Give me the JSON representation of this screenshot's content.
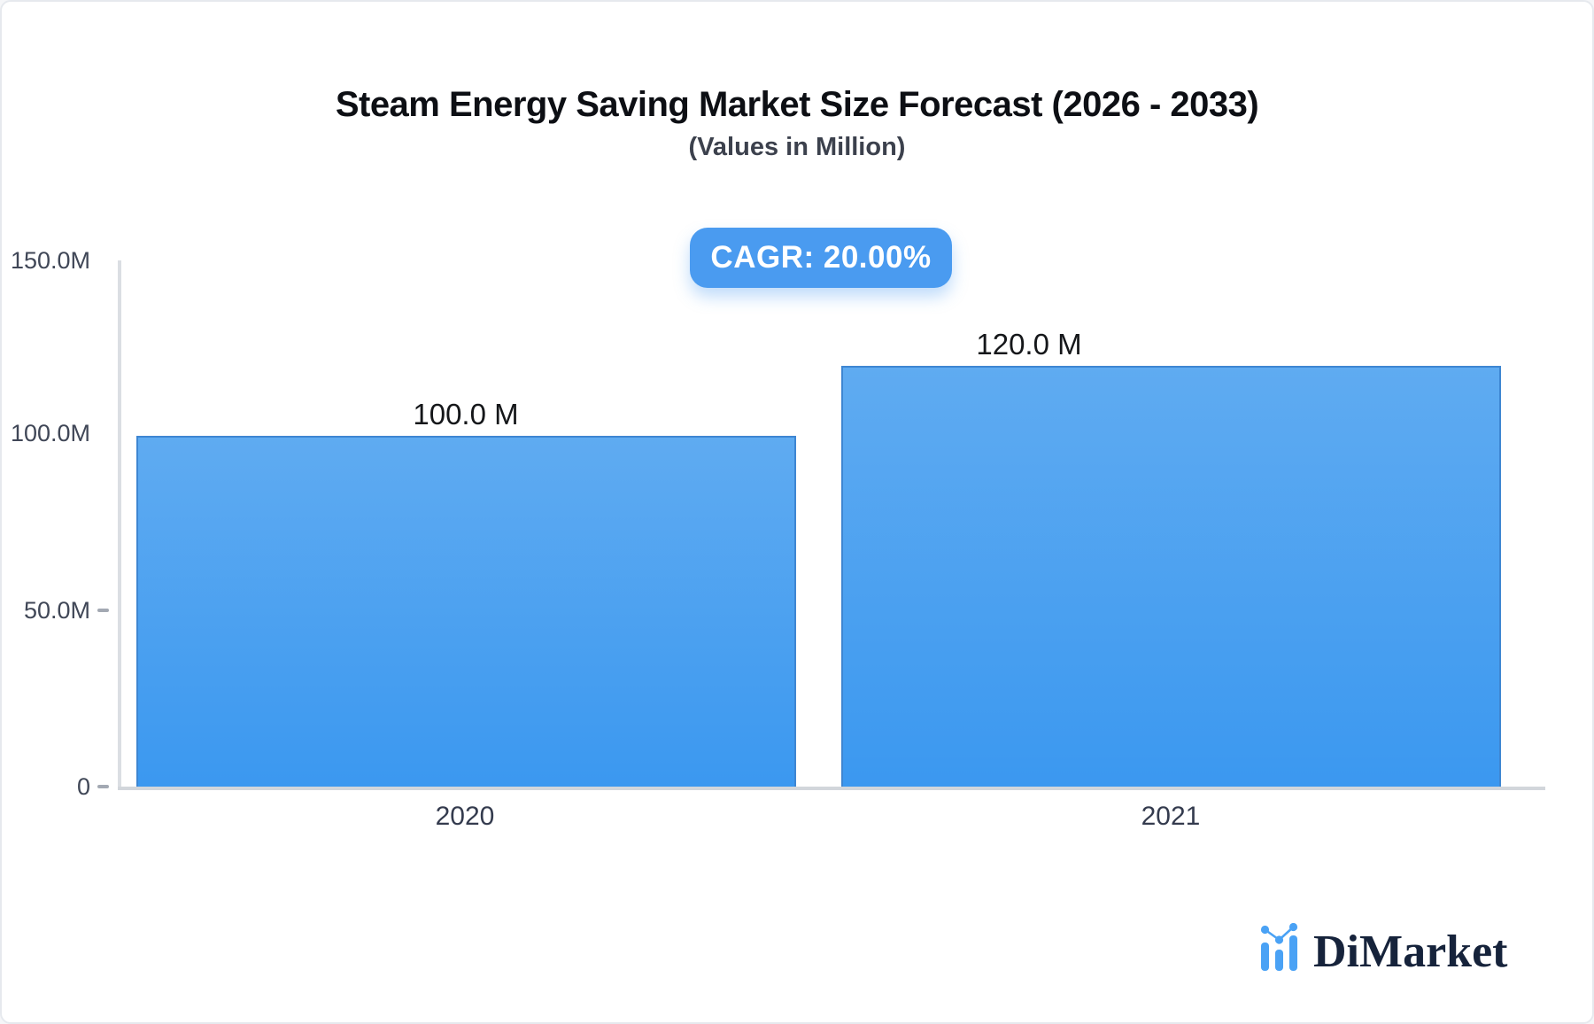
{
  "title": "Steam Energy Saving Market Size Forecast (2026 - 2033)",
  "subtitle": "(Values in Million)",
  "badge": {
    "label": "CAGR: 20.00%",
    "color": "#4a9bf0"
  },
  "chart_data": {
    "type": "bar",
    "categories": [
      "2020",
      "2021"
    ],
    "values": [
      100.0,
      120.0
    ],
    "value_labels": [
      "100.0 M",
      "120.0 M"
    ],
    "series_unit": "Million",
    "title": "Steam Energy Saving Market Size Forecast (2026 - 2033)",
    "subtitle": "(Values in Million)",
    "ylim": [
      0,
      150
    ],
    "y_ticks": [
      "150.0M",
      "100.0M",
      "50.0M",
      "0"
    ],
    "grid": "off",
    "legend": "none",
    "bar_color_top": "#5fabf1",
    "bar_color_bottom": "#3b98f0",
    "bar_border_color": "#3e86d2",
    "axis_color": "#d2d6db"
  },
  "watermark": {
    "brand": "DiMarket",
    "icon": "bar-chart-logo-icon",
    "icon_color": "#4aa2f5",
    "text_color": "#16233b"
  }
}
